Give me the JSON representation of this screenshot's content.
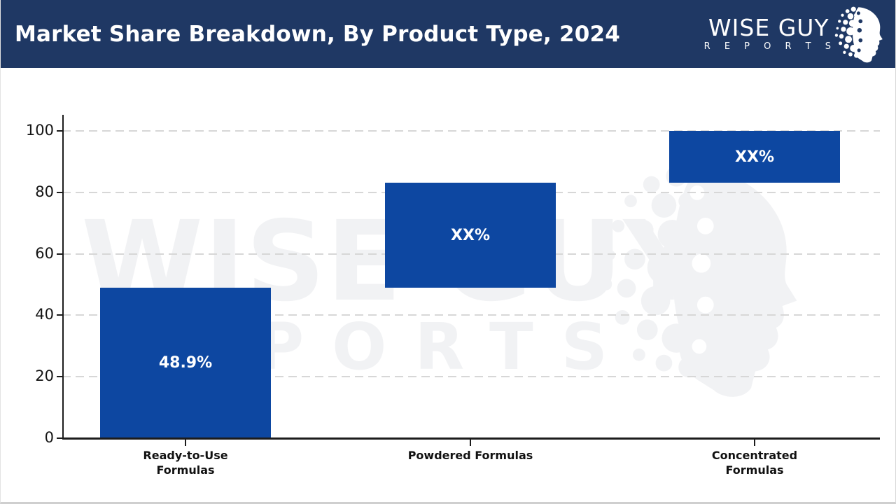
{
  "header": {
    "title": "Market Share Breakdown, By Product Type, 2024",
    "logo": {
      "name": "WISE GUY",
      "sub": "R E P O R T S"
    }
  },
  "watermark": {
    "line1": "WISE GUY",
    "line2": "REPORTS"
  },
  "chart_data": {
    "type": "bar",
    "subtype": "waterfall-stacked-market-share",
    "title": "Market Share Breakdown, By Product Type, 2024",
    "categories": [
      "Ready-to-Use\nFormulas",
      "Powdered Formulas",
      "Concentrated\nFormulas"
    ],
    "segments": [
      {
        "category": "Ready-to-Use Formulas",
        "start": 0,
        "end": 48.9,
        "label": "48.9%"
      },
      {
        "category": "Powdered Formulas",
        "start": 48.9,
        "end": 83.1,
        "label": "XX%"
      },
      {
        "category": "Concentrated Formulas",
        "start": 83.1,
        "end": 100.0,
        "label": "XX%"
      }
    ],
    "xlabel": "",
    "ylabel": "",
    "ylim": [
      0,
      100
    ],
    "yticks": [
      0,
      20,
      40,
      60,
      80,
      100
    ],
    "grid": "horizontal-dashed",
    "legend": "none",
    "bar_color": "#0d47a1",
    "bar_label_color": "#ffffff",
    "header_color": "#1f3864"
  }
}
